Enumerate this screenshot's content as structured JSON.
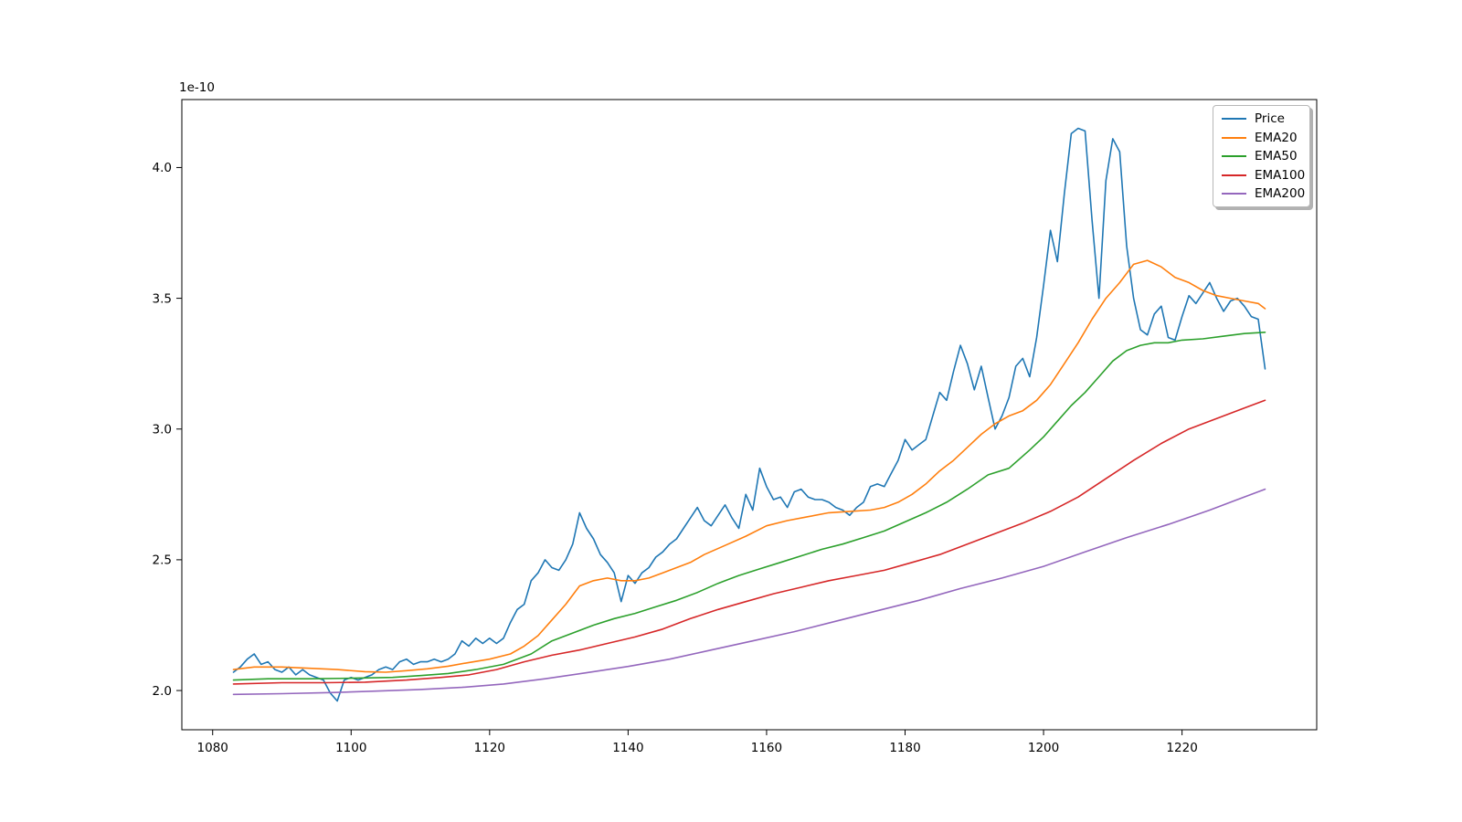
{
  "figure": {
    "background_color": "#ffffff",
    "y_offset_text": "1e-10"
  },
  "chart_data": {
    "type": "line",
    "title": "",
    "xlabel": "",
    "ylabel": "",
    "grid": false,
    "legend_position": "upper right",
    "xlim": [
      1075.55,
      1239.45
    ],
    "ylim": [
      1.85,
      4.26
    ],
    "y_offset_text": "1e-10",
    "xticks": [
      {
        "value": 1080,
        "label": "1080"
      },
      {
        "value": 1100,
        "label": "1100"
      },
      {
        "value": 1120,
        "label": "1120"
      },
      {
        "value": 1140,
        "label": "1140"
      },
      {
        "value": 1160,
        "label": "1160"
      },
      {
        "value": 1180,
        "label": "1180"
      },
      {
        "value": 1200,
        "label": "1200"
      },
      {
        "value": 1220,
        "label": "1220"
      }
    ],
    "yticks": [
      {
        "value": 2.0,
        "label": "2.0"
      },
      {
        "value": 2.5,
        "label": "2.5"
      },
      {
        "value": 3.0,
        "label": "3.0"
      },
      {
        "value": 3.5,
        "label": "3.5"
      },
      {
        "value": 4.0,
        "label": "4.0"
      }
    ],
    "series": [
      {
        "name": "Price",
        "color": "#1f77b4",
        "x0": 1083,
        "values": [
          2.07,
          2.09,
          2.12,
          2.14,
          2.1,
          2.11,
          2.08,
          2.07,
          2.09,
          2.06,
          2.08,
          2.06,
          2.05,
          2.04,
          1.99,
          1.96,
          2.04,
          2.05,
          2.04,
          2.05,
          2.06,
          2.08,
          2.09,
          2.08,
          2.11,
          2.12,
          2.1,
          2.11,
          2.11,
          2.12,
          2.11,
          2.12,
          2.14,
          2.19,
          2.17,
          2.2,
          2.18,
          2.2,
          2.18,
          2.2,
          2.26,
          2.31,
          2.33,
          2.42,
          2.45,
          2.5,
          2.47,
          2.46,
          2.5,
          2.56,
          2.68,
          2.62,
          2.58,
          2.52,
          2.49,
          2.45,
          2.34,
          2.44,
          2.41,
          2.45,
          2.47,
          2.51,
          2.53,
          2.56,
          2.58,
          2.62,
          2.66,
          2.7,
          2.65,
          2.63,
          2.67,
          2.71,
          2.66,
          2.62,
          2.75,
          2.69,
          2.85,
          2.78,
          2.73,
          2.74,
          2.7,
          2.76,
          2.77,
          2.74,
          2.73,
          2.73,
          2.72,
          2.7,
          2.69,
          2.67,
          2.7,
          2.72,
          2.78,
          2.79,
          2.78,
          2.83,
          2.88,
          2.96,
          2.92,
          2.94,
          2.96,
          3.05,
          3.14,
          3.11,
          3.22,
          3.32,
          3.25,
          3.15,
          3.24,
          3.12,
          3.0,
          3.05,
          3.12,
          3.24,
          3.27,
          3.2,
          3.35,
          3.55,
          3.76,
          3.64,
          3.9,
          4.13,
          4.15,
          4.14,
          3.8,
          3.5,
          3.95,
          4.11,
          4.06,
          3.7,
          3.5,
          3.38,
          3.36,
          3.44,
          3.47,
          3.35,
          3.34,
          3.43,
          3.51,
          3.48,
          3.52,
          3.56,
          3.5,
          3.45,
          3.49,
          3.5,
          3.47,
          3.43,
          3.42,
          3.23
        ]
      },
      {
        "name": "EMA20",
        "color": "#ff7f0e",
        "points": [
          [
            1083,
            2.08
          ],
          [
            1086,
            2.09
          ],
          [
            1090,
            2.09
          ],
          [
            1094,
            2.085
          ],
          [
            1098,
            2.08
          ],
          [
            1102,
            2.072
          ],
          [
            1105,
            2.07
          ],
          [
            1108,
            2.076
          ],
          [
            1111,
            2.083
          ],
          [
            1114,
            2.093
          ],
          [
            1117,
            2.107
          ],
          [
            1120,
            2.12
          ],
          [
            1123,
            2.14
          ],
          [
            1125,
            2.17
          ],
          [
            1127,
            2.21
          ],
          [
            1129,
            2.27
          ],
          [
            1131,
            2.33
          ],
          [
            1133,
            2.4
          ],
          [
            1135,
            2.42
          ],
          [
            1137,
            2.43
          ],
          [
            1139,
            2.42
          ],
          [
            1141,
            2.42
          ],
          [
            1143,
            2.43
          ],
          [
            1145,
            2.45
          ],
          [
            1147,
            2.47
          ],
          [
            1149,
            2.49
          ],
          [
            1151,
            2.52
          ],
          [
            1154,
            2.555
          ],
          [
            1157,
            2.59
          ],
          [
            1160,
            2.63
          ],
          [
            1163,
            2.65
          ],
          [
            1166,
            2.665
          ],
          [
            1169,
            2.68
          ],
          [
            1172,
            2.685
          ],
          [
            1175,
            2.69
          ],
          [
            1177,
            2.7
          ],
          [
            1179,
            2.72
          ],
          [
            1181,
            2.75
          ],
          [
            1183,
            2.79
          ],
          [
            1185,
            2.84
          ],
          [
            1187,
            2.88
          ],
          [
            1189,
            2.93
          ],
          [
            1191,
            2.98
          ],
          [
            1193,
            3.02
          ],
          [
            1195,
            3.05
          ],
          [
            1197,
            3.07
          ],
          [
            1199,
            3.11
          ],
          [
            1201,
            3.17
          ],
          [
            1203,
            3.25
          ],
          [
            1205,
            3.33
          ],
          [
            1207,
            3.42
          ],
          [
            1209,
            3.5
          ],
          [
            1211,
            3.56
          ],
          [
            1213,
            3.63
          ],
          [
            1215,
            3.645
          ],
          [
            1217,
            3.62
          ],
          [
            1219,
            3.58
          ],
          [
            1221,
            3.56
          ],
          [
            1223,
            3.53
          ],
          [
            1225,
            3.51
          ],
          [
            1227,
            3.5
          ],
          [
            1229,
            3.49
          ],
          [
            1231,
            3.48
          ],
          [
            1232,
            3.46
          ]
        ]
      },
      {
        "name": "EMA50",
        "color": "#2ca02c",
        "points": [
          [
            1083,
            2.04
          ],
          [
            1088,
            2.045
          ],
          [
            1094,
            2.045
          ],
          [
            1100,
            2.047
          ],
          [
            1106,
            2.05
          ],
          [
            1110,
            2.057
          ],
          [
            1114,
            2.065
          ],
          [
            1118,
            2.08
          ],
          [
            1122,
            2.1
          ],
          [
            1126,
            2.14
          ],
          [
            1129,
            2.19
          ],
          [
            1132,
            2.22
          ],
          [
            1135,
            2.25
          ],
          [
            1138,
            2.275
          ],
          [
            1141,
            2.295
          ],
          [
            1144,
            2.32
          ],
          [
            1147,
            2.345
          ],
          [
            1150,
            2.375
          ],
          [
            1153,
            2.41
          ],
          [
            1156,
            2.44
          ],
          [
            1159,
            2.465
          ],
          [
            1162,
            2.49
          ],
          [
            1165,
            2.515
          ],
          [
            1168,
            2.54
          ],
          [
            1171,
            2.56
          ],
          [
            1174,
            2.585
          ],
          [
            1177,
            2.61
          ],
          [
            1180,
            2.645
          ],
          [
            1183,
            2.68
          ],
          [
            1186,
            2.72
          ],
          [
            1189,
            2.77
          ],
          [
            1192,
            2.825
          ],
          [
            1195,
            2.85
          ],
          [
            1198,
            2.92
          ],
          [
            1200,
            2.97
          ],
          [
            1202,
            3.03
          ],
          [
            1204,
            3.09
          ],
          [
            1206,
            3.14
          ],
          [
            1208,
            3.2
          ],
          [
            1210,
            3.26
          ],
          [
            1212,
            3.3
          ],
          [
            1214,
            3.32
          ],
          [
            1216,
            3.33
          ],
          [
            1218,
            3.33
          ],
          [
            1220,
            3.34
          ],
          [
            1223,
            3.345
          ],
          [
            1226,
            3.355
          ],
          [
            1229,
            3.365
          ],
          [
            1232,
            3.37
          ]
        ]
      },
      {
        "name": "EMA100",
        "color": "#d62728",
        "points": [
          [
            1083,
            2.025
          ],
          [
            1090,
            2.03
          ],
          [
            1096,
            2.03
          ],
          [
            1102,
            2.032
          ],
          [
            1108,
            2.04
          ],
          [
            1113,
            2.05
          ],
          [
            1117,
            2.06
          ],
          [
            1121,
            2.08
          ],
          [
            1125,
            2.11
          ],
          [
            1129,
            2.135
          ],
          [
            1133,
            2.155
          ],
          [
            1137,
            2.18
          ],
          [
            1141,
            2.205
          ],
          [
            1145,
            2.235
          ],
          [
            1149,
            2.275
          ],
          [
            1153,
            2.31
          ],
          [
            1157,
            2.34
          ],
          [
            1161,
            2.37
          ],
          [
            1165,
            2.395
          ],
          [
            1169,
            2.42
          ],
          [
            1173,
            2.44
          ],
          [
            1177,
            2.46
          ],
          [
            1181,
            2.49
          ],
          [
            1185,
            2.52
          ],
          [
            1189,
            2.56
          ],
          [
            1193,
            2.6
          ],
          [
            1197,
            2.64
          ],
          [
            1201,
            2.685
          ],
          [
            1205,
            2.74
          ],
          [
            1209,
            2.81
          ],
          [
            1213,
            2.88
          ],
          [
            1217,
            2.945
          ],
          [
            1221,
            3.0
          ],
          [
            1225,
            3.04
          ],
          [
            1229,
            3.08
          ],
          [
            1232,
            3.11
          ]
        ]
      },
      {
        "name": "EMA200",
        "color": "#9467bd",
        "points": [
          [
            1083,
            1.985
          ],
          [
            1090,
            1.988
          ],
          [
            1097,
            1.992
          ],
          [
            1104,
            1.998
          ],
          [
            1110,
            2.004
          ],
          [
            1116,
            2.012
          ],
          [
            1122,
            2.025
          ],
          [
            1128,
            2.045
          ],
          [
            1134,
            2.068
          ],
          [
            1140,
            2.092
          ],
          [
            1146,
            2.12
          ],
          [
            1152,
            2.155
          ],
          [
            1158,
            2.19
          ],
          [
            1164,
            2.225
          ],
          [
            1170,
            2.265
          ],
          [
            1176,
            2.305
          ],
          [
            1182,
            2.345
          ],
          [
            1188,
            2.39
          ],
          [
            1194,
            2.43
          ],
          [
            1200,
            2.475
          ],
          [
            1206,
            2.53
          ],
          [
            1212,
            2.585
          ],
          [
            1218,
            2.635
          ],
          [
            1224,
            2.69
          ],
          [
            1228,
            2.73
          ],
          [
            1232,
            2.77
          ]
        ]
      }
    ]
  }
}
